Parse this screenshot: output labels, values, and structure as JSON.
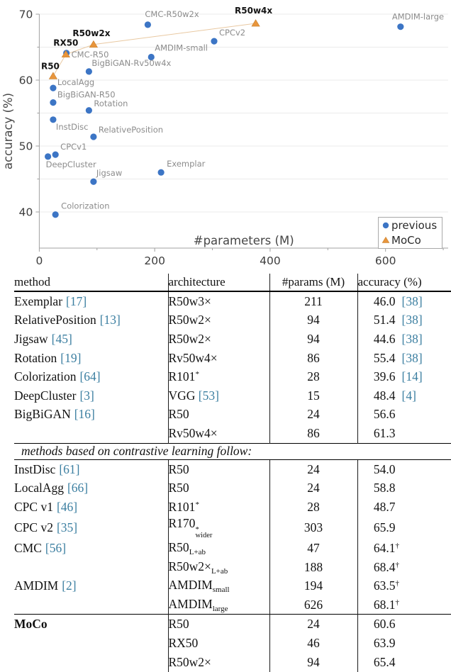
{
  "figure": {
    "chart_data": {
      "type": "scatter",
      "title": "",
      "xlabel": "#parameters (M)",
      "ylabel": "accuracy (%)",
      "xlim": [
        0,
        710
      ],
      "ylim": [
        34.5,
        70
      ],
      "xticks": [
        0,
        200,
        400,
        600
      ],
      "xticks_minor": [
        100,
        300,
        500,
        700
      ],
      "yticks": [
        40,
        50,
        60,
        70
      ],
      "gridlines_y": [
        40,
        45,
        50,
        55,
        60,
        65,
        70
      ],
      "grid": "horizontal-light",
      "colors": {
        "previous": "#3c75c5",
        "moco": "#e8953c",
        "moco_edge": "#c9822f",
        "moco_line": "#e9c9a2",
        "gridline": "#ebebeb",
        "axis": "#a0a0a0",
        "label_gray": "#8c8c8c"
      },
      "legend": {
        "position": "bottom-right",
        "items": [
          {
            "label": "previous",
            "marker": "circle"
          },
          {
            "label": "MoCo",
            "marker": "triangle"
          }
        ]
      },
      "series": [
        {
          "name": "previous",
          "marker": "circle",
          "points": [
            {
              "label": "InstDisc",
              "x": 24,
              "y": 54.0,
              "dx": 4,
              "dy": 14,
              "anchor": "start"
            },
            {
              "label": "LocalAgg",
              "x": 24,
              "y": 58.8,
              "dx": 6,
              "dy": -4,
              "anchor": "start"
            },
            {
              "label": "CPCv1",
              "x": 28,
              "y": 48.7,
              "dx": 7,
              "dy": -7,
              "anchor": "start"
            },
            {
              "label": "DeepCluster",
              "x": 15,
              "y": 48.4,
              "dx": -3,
              "dy": 15,
              "anchor": "start"
            },
            {
              "label": "BigBiGAN-R50",
              "x": 24,
              "y": 56.6,
              "dx": 6,
              "dy": -7,
              "anchor": "start"
            },
            {
              "label": "BigBiGAN-Rv50w4x",
              "x": 86,
              "y": 61.3,
              "dx": 4,
              "dy": -8,
              "anchor": "start"
            },
            {
              "label": "Rotation",
              "x": 86,
              "y": 55.4,
              "dx": 7,
              "dy": -6,
              "anchor": "start"
            },
            {
              "label": "RelativePosition",
              "x": 94,
              "y": 51.4,
              "dx": 7,
              "dy": -6,
              "anchor": "start"
            },
            {
              "label": "Jigsaw",
              "x": 94,
              "y": 44.6,
              "dx": 4,
              "dy": -8,
              "anchor": "start"
            },
            {
              "label": "Colorization",
              "x": 28,
              "y": 39.6,
              "dx": 8,
              "dy": -8,
              "anchor": "start"
            },
            {
              "label": "Exemplar",
              "x": 211,
              "y": 46.0,
              "dx": 8,
              "dy": -8,
              "anchor": "start"
            },
            {
              "label": "CMC-R50",
              "x": 47,
              "y": 64.1,
              "dx": 7,
              "dy": 6,
              "anchor": "start"
            },
            {
              "label": "CMC-R50w2x",
              "x": 188,
              "y": 68.4,
              "dx": -4,
              "dy": -11,
              "anchor": "start"
            },
            {
              "label": "AMDIM-small",
              "x": 194,
              "y": 63.5,
              "dx": 5,
              "dy": -9,
              "anchor": "start"
            },
            {
              "label": "CPCv2",
              "x": 303,
              "y": 65.9,
              "dx": 7,
              "dy": -8,
              "anchor": "start"
            },
            {
              "label": "AMDIM-large",
              "x": 626,
              "y": 68.1,
              "dx": -12,
              "dy": -10,
              "anchor": "start"
            }
          ]
        },
        {
          "name": "MoCo",
          "marker": "triangle",
          "connected": true,
          "points": [
            {
              "label": "R50",
              "x": 24,
              "y": 60.6,
              "dx": -4,
              "dy": -10,
              "anchor": "middle"
            },
            {
              "label": "RX50",
              "x": 46,
              "y": 63.9,
              "dx": 0,
              "dy": -12,
              "anchor": "middle"
            },
            {
              "label": "R50w2x",
              "x": 94,
              "y": 65.4,
              "dx": -3,
              "dy": -12,
              "anchor": "middle"
            },
            {
              "label": "R50w4x",
              "x": 375,
              "y": 68.6,
              "dx": -3,
              "dy": -14,
              "anchor": "middle"
            }
          ]
        }
      ]
    }
  },
  "table": {
    "headers": [
      "method",
      "architecture",
      "#params (M)",
      "accuracy (%)"
    ],
    "note": "methods based on contrastive learning follow:",
    "groups": [
      [
        {
          "method": "Exemplar",
          "cite": "[17]",
          "arch": [
            [
              "n",
              "R50w3×"
            ]
          ],
          "params": "211",
          "acc": "46.0",
          "acc_cite": "[38]"
        },
        {
          "method": "RelativePosition",
          "cite": "[13]",
          "arch": [
            [
              "n",
              "R50w2×"
            ]
          ],
          "params": "94",
          "acc": "51.4",
          "acc_cite": "[38]"
        },
        {
          "method": "Jigsaw",
          "cite": "[45]",
          "arch": [
            [
              "n",
              "R50w2×"
            ]
          ],
          "params": "94",
          "acc": "44.6",
          "acc_cite": "[38]"
        },
        {
          "method": "Rotation",
          "cite": "[19]",
          "arch": [
            [
              "n",
              "Rv50w4×"
            ]
          ],
          "params": "86",
          "acc": "55.4",
          "acc_cite": "[38]"
        },
        {
          "method": "Colorization",
          "cite": "[64]",
          "arch": [
            [
              "n",
              "R101"
            ],
            [
              "sup",
              "*"
            ]
          ],
          "params": "28",
          "acc": "39.6",
          "acc_cite": "[14]"
        },
        {
          "method": "DeepCluster",
          "cite": "[3]",
          "arch": [
            [
              "n",
              "VGG "
            ],
            [
              "cite",
              "[53]"
            ]
          ],
          "params": "15",
          "acc": "48.4",
          "acc_cite": "[4]"
        },
        {
          "method": "BigBiGAN",
          "cite": "[16]",
          "arch": [
            [
              "n",
              "R50"
            ]
          ],
          "params": "24",
          "acc": "56.6"
        },
        {
          "method": "",
          "arch": [
            [
              "n",
              "Rv50w4×"
            ]
          ],
          "params": "86",
          "acc": "61.3"
        }
      ],
      [
        {
          "method": "InstDisc",
          "cite": "[61]",
          "arch": [
            [
              "n",
              "R50"
            ]
          ],
          "params": "24",
          "acc": "54.0"
        },
        {
          "method": "LocalAgg",
          "cite": "[66]",
          "arch": [
            [
              "n",
              "R50"
            ]
          ],
          "params": "24",
          "acc": "58.8"
        },
        {
          "method": "CPC v1",
          "cite": "[46]",
          "arch": [
            [
              "n",
              "R101"
            ],
            [
              "sup",
              "*"
            ]
          ],
          "params": "28",
          "acc": "48.7"
        },
        {
          "method": "CPC v2",
          "cite": "[35]",
          "arch": [
            [
              "n",
              "R170"
            ],
            [
              "supsub",
              "*",
              "wider"
            ]
          ],
          "params": "303",
          "acc": "65.9"
        },
        {
          "method": "CMC",
          "cite": "[56]",
          "arch": [
            [
              "n",
              "R50"
            ],
            [
              "sub",
              "L+ab"
            ]
          ],
          "params": "47",
          "acc": "64.1",
          "dagger": true
        },
        {
          "method": "",
          "arch": [
            [
              "n",
              "R50w2×"
            ],
            [
              "sub",
              "L+ab"
            ]
          ],
          "params": "188",
          "acc": "68.4",
          "dagger": true
        },
        {
          "method": "AMDIM",
          "cite": "[2]",
          "arch": [
            [
              "n",
              "AMDIM"
            ],
            [
              "sub",
              "small"
            ]
          ],
          "params": "194",
          "acc": "63.5",
          "dagger": true
        },
        {
          "method": "",
          "arch": [
            [
              "n",
              "AMDIM"
            ],
            [
              "sub",
              "large"
            ]
          ],
          "params": "626",
          "acc": "68.1",
          "dagger": true
        }
      ],
      [
        {
          "method": "MoCo",
          "bold": true,
          "arch": [
            [
              "n",
              "R50"
            ]
          ],
          "params": "24",
          "acc": "60.6"
        },
        {
          "method": "",
          "arch": [
            [
              "n",
              "RX50"
            ]
          ],
          "params": "46",
          "acc": "63.9"
        },
        {
          "method": "",
          "arch": [
            [
              "n",
              "R50w2×"
            ]
          ],
          "params": "94",
          "acc": "65.4"
        }
      ]
    ]
  }
}
